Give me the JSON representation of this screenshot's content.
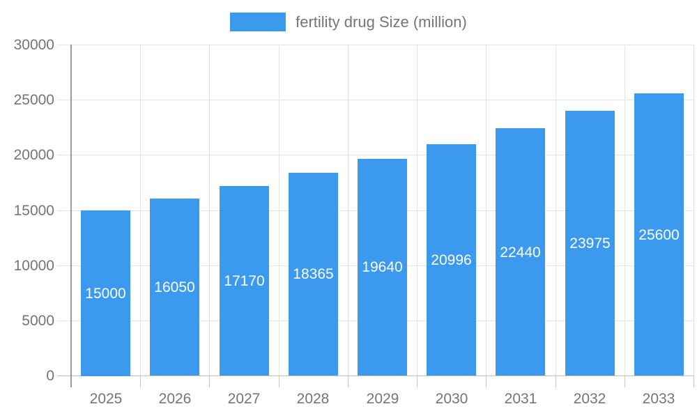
{
  "chart_data": {
    "type": "bar",
    "title": "fertility drug Size (million)",
    "legend": {
      "label": "fertility drug Size (million)",
      "position": "top"
    },
    "categories": [
      "2025",
      "2026",
      "2027",
      "2028",
      "2029",
      "2030",
      "2031",
      "2032",
      "2033"
    ],
    "series": [
      {
        "name": "fertility drug Size (million)",
        "values": [
          15000,
          16050,
          17170,
          18365,
          19640,
          20996,
          22440,
          23975,
          25600
        ]
      }
    ],
    "value_labels": [
      "15000",
      "16050",
      "17170",
      "18365",
      "19640",
      "20996",
      "22440",
      "23975",
      "25600"
    ],
    "xlabel": "",
    "ylabel": "",
    "ylim": [
      0,
      30000
    ],
    "y_ticks": [
      0,
      5000,
      10000,
      15000,
      20000,
      25000,
      30000
    ],
    "y_tick_labels": [
      "0",
      "5000",
      "10000",
      "15000",
      "20000",
      "25000",
      "30000"
    ],
    "grid": "on",
    "colors": {
      "bar": "#3b99ee",
      "grid": "#e4e4e4",
      "baseline": "#c0c0c0",
      "axis": "#9a9a9a",
      "tick": "#c6c6c6",
      "text": "#757575",
      "bar_label": "#ffffff",
      "background": "#ffffff"
    }
  }
}
